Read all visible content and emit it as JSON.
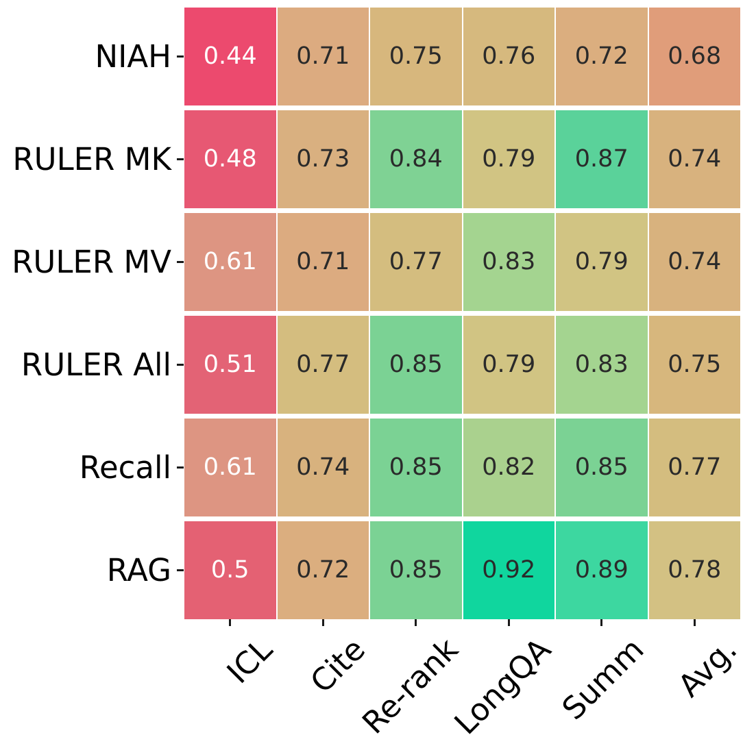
{
  "figure": {
    "background": "#ffffff",
    "tick_color": "#1a1a1a",
    "axis_label_color": "#000000",
    "annot_dark_color": "#2a2a2a",
    "annot_light_color": "#ffffff"
  },
  "chart_data": {
    "type": "heatmap",
    "title": "",
    "xlabel": "",
    "ylabel": "",
    "legend": "none",
    "grid": false,
    "x_labels": [
      "ICL",
      "Cite",
      "Re-rank",
      "LongQA",
      "Summ",
      "Avg."
    ],
    "y_labels": [
      "NIAH",
      "RULER MK",
      "RULER MV",
      "RULER All",
      "Recall",
      "RAG"
    ],
    "values": [
      [
        0.44,
        0.71,
        0.75,
        0.76,
        0.72,
        0.68
      ],
      [
        0.48,
        0.73,
        0.84,
        0.79,
        0.87,
        0.74
      ],
      [
        0.61,
        0.71,
        0.77,
        0.83,
        0.79,
        0.74
      ],
      [
        0.51,
        0.77,
        0.85,
        0.79,
        0.83,
        0.75
      ],
      [
        0.61,
        0.74,
        0.85,
        0.82,
        0.85,
        0.77
      ],
      [
        0.5,
        0.72,
        0.85,
        0.92,
        0.89,
        0.78
      ]
    ],
    "annotations": [
      [
        "0.44",
        "0.71",
        "0.75",
        "0.76",
        "0.72",
        "0.68"
      ],
      [
        "0.48",
        "0.73",
        "0.84",
        "0.79",
        "0.87",
        "0.74"
      ],
      [
        "0.61",
        "0.71",
        "0.77",
        "0.83",
        "0.79",
        "0.74"
      ],
      [
        "0.51",
        "0.77",
        "0.85",
        "0.79",
        "0.83",
        "0.75"
      ],
      [
        "0.61",
        "0.74",
        "0.85",
        "0.82",
        "0.85",
        "0.77"
      ],
      [
        "0.5",
        "0.72",
        "0.85",
        "0.92",
        "0.89",
        "0.78"
      ]
    ],
    "cell_colors": [
      [
        "#ec4a6e",
        "#dcab80",
        "#d7b77d",
        "#d6b97e",
        "#dbae7f",
        "#e09d7a"
      ],
      [
        "#e75873",
        "#d9b080",
        "#7fd294",
        "#d1c483",
        "#5ad29a",
        "#d8b27e"
      ],
      [
        "#dd9582",
        "#dcab80",
        "#d4bd7f",
        "#a4d490",
        "#d1c483",
        "#d8b27e"
      ],
      [
        "#e36375",
        "#d4bd7f",
        "#7bd294",
        "#d1c483",
        "#a4d490",
        "#d7b77d"
      ],
      [
        "#dd9582",
        "#d8b27e",
        "#7bd294",
        "#aad18e",
        "#7bd294",
        "#d4bd7f"
      ],
      [
        "#e46173",
        "#dbae7f",
        "#7bd294",
        "#10d69e",
        "#3dd7a0",
        "#d3c183"
      ]
    ],
    "annotation_colors": [
      [
        "#ffffff",
        "#2a2a2a",
        "#2a2a2a",
        "#2a2a2a",
        "#2a2a2a",
        "#2a2a2a"
      ],
      [
        "#ffffff",
        "#2a2a2a",
        "#2a2a2a",
        "#2a2a2a",
        "#2a2a2a",
        "#2a2a2a"
      ],
      [
        "#ffffff",
        "#2a2a2a",
        "#2a2a2a",
        "#2a2a2a",
        "#2a2a2a",
        "#2a2a2a"
      ],
      [
        "#ffffff",
        "#2a2a2a",
        "#2a2a2a",
        "#2a2a2a",
        "#2a2a2a",
        "#2a2a2a"
      ],
      [
        "#ffffff",
        "#2a2a2a",
        "#2a2a2a",
        "#2a2a2a",
        "#2a2a2a",
        "#2a2a2a"
      ],
      [
        "#ffffff",
        "#2a2a2a",
        "#2a2a2a",
        "#2a2a2a",
        "#2a2a2a",
        "#2a2a2a"
      ]
    ],
    "value_range": [
      0.44,
      0.92
    ],
    "colormap_hint": "red-tan-green diverging"
  }
}
